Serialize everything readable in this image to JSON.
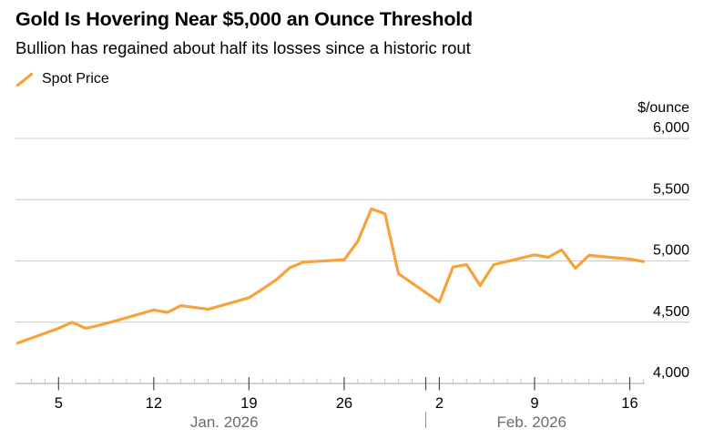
{
  "header": {
    "title": "Gold Is Hovering Near $5,000 an Ounce Threshold",
    "subtitle": "Bullion has regained about half its losses since a historic rout"
  },
  "legend": {
    "label": "Spot Price"
  },
  "colors": {
    "line": "#F7A23A",
    "grid": "#CCCCCC",
    "axis_baseline": "#A6A6A6",
    "tick_minor": "#C4C4C4",
    "tick_major": "#4A4A4A",
    "month_text": "#6B6B6B",
    "label_text": "#000000"
  },
  "chart_data": {
    "type": "line",
    "title": "Gold Is Hovering Near $5,000 an Ounce Threshold",
    "subtitle": "Bullion has regained about half its losses since a historic rout",
    "legend_entries": [
      "Spot Price"
    ],
    "legend_position": "top-left",
    "grid": "horizontal-only",
    "y_axis": {
      "label": "$/ounce",
      "range": [
        4000,
        6000
      ],
      "ticks": [
        4000,
        4500,
        5000,
        5500,
        6000
      ],
      "tick_labels": [
        "4,000",
        "4,500",
        "5,000",
        "5,500",
        "6,000"
      ]
    },
    "x_axis": {
      "range": [
        "2026-01-02",
        "2026-02-17"
      ],
      "minor_tick_interval": "day",
      "major_ticks": [
        {
          "date": "2026-01-05",
          "label": "5"
        },
        {
          "date": "2026-01-12",
          "label": "12"
        },
        {
          "date": "2026-01-19",
          "label": "19"
        },
        {
          "date": "2026-01-26",
          "label": "26"
        },
        {
          "date": "2026-02-02",
          "label": "2"
        },
        {
          "date": "2026-02-09",
          "label": "9"
        },
        {
          "date": "2026-02-16",
          "label": "16"
        }
      ],
      "month_boundary": "2026-02-01",
      "month_labels": [
        "Jan. 2026",
        "Feb. 2026"
      ]
    },
    "series": [
      {
        "name": "Spot Price",
        "color": "#F7A23A",
        "points": [
          [
            "2026-01-02",
            4330
          ],
          [
            "2026-01-05",
            4450
          ],
          [
            "2026-01-06",
            4500
          ],
          [
            "2026-01-07",
            4450
          ],
          [
            "2026-01-08",
            4475
          ],
          [
            "2026-01-09",
            4505
          ],
          [
            "2026-01-12",
            4600
          ],
          [
            "2026-01-13",
            4580
          ],
          [
            "2026-01-14",
            4635
          ],
          [
            "2026-01-15",
            4620
          ],
          [
            "2026-01-16",
            4605
          ],
          [
            "2026-01-19",
            4700
          ],
          [
            "2026-01-20",
            4770
          ],
          [
            "2026-01-21",
            4845
          ],
          [
            "2026-01-22",
            4945
          ],
          [
            "2026-01-23",
            4990
          ],
          [
            "2026-01-26",
            5010
          ],
          [
            "2026-01-27",
            5160
          ],
          [
            "2026-01-28",
            5425
          ],
          [
            "2026-01-29",
            5385
          ],
          [
            "2026-01-30",
            4895
          ],
          [
            "2026-02-02",
            4665
          ],
          [
            "2026-02-03",
            4950
          ],
          [
            "2026-02-04",
            4970
          ],
          [
            "2026-02-05",
            4800
          ],
          [
            "2026-02-06",
            4970
          ],
          [
            "2026-02-09",
            5050
          ],
          [
            "2026-02-10",
            5030
          ],
          [
            "2026-02-11",
            5090
          ],
          [
            "2026-02-12",
            4940
          ],
          [
            "2026-02-13",
            5045
          ],
          [
            "2026-02-16",
            5015
          ],
          [
            "2026-02-17",
            4995
          ]
        ]
      }
    ]
  }
}
